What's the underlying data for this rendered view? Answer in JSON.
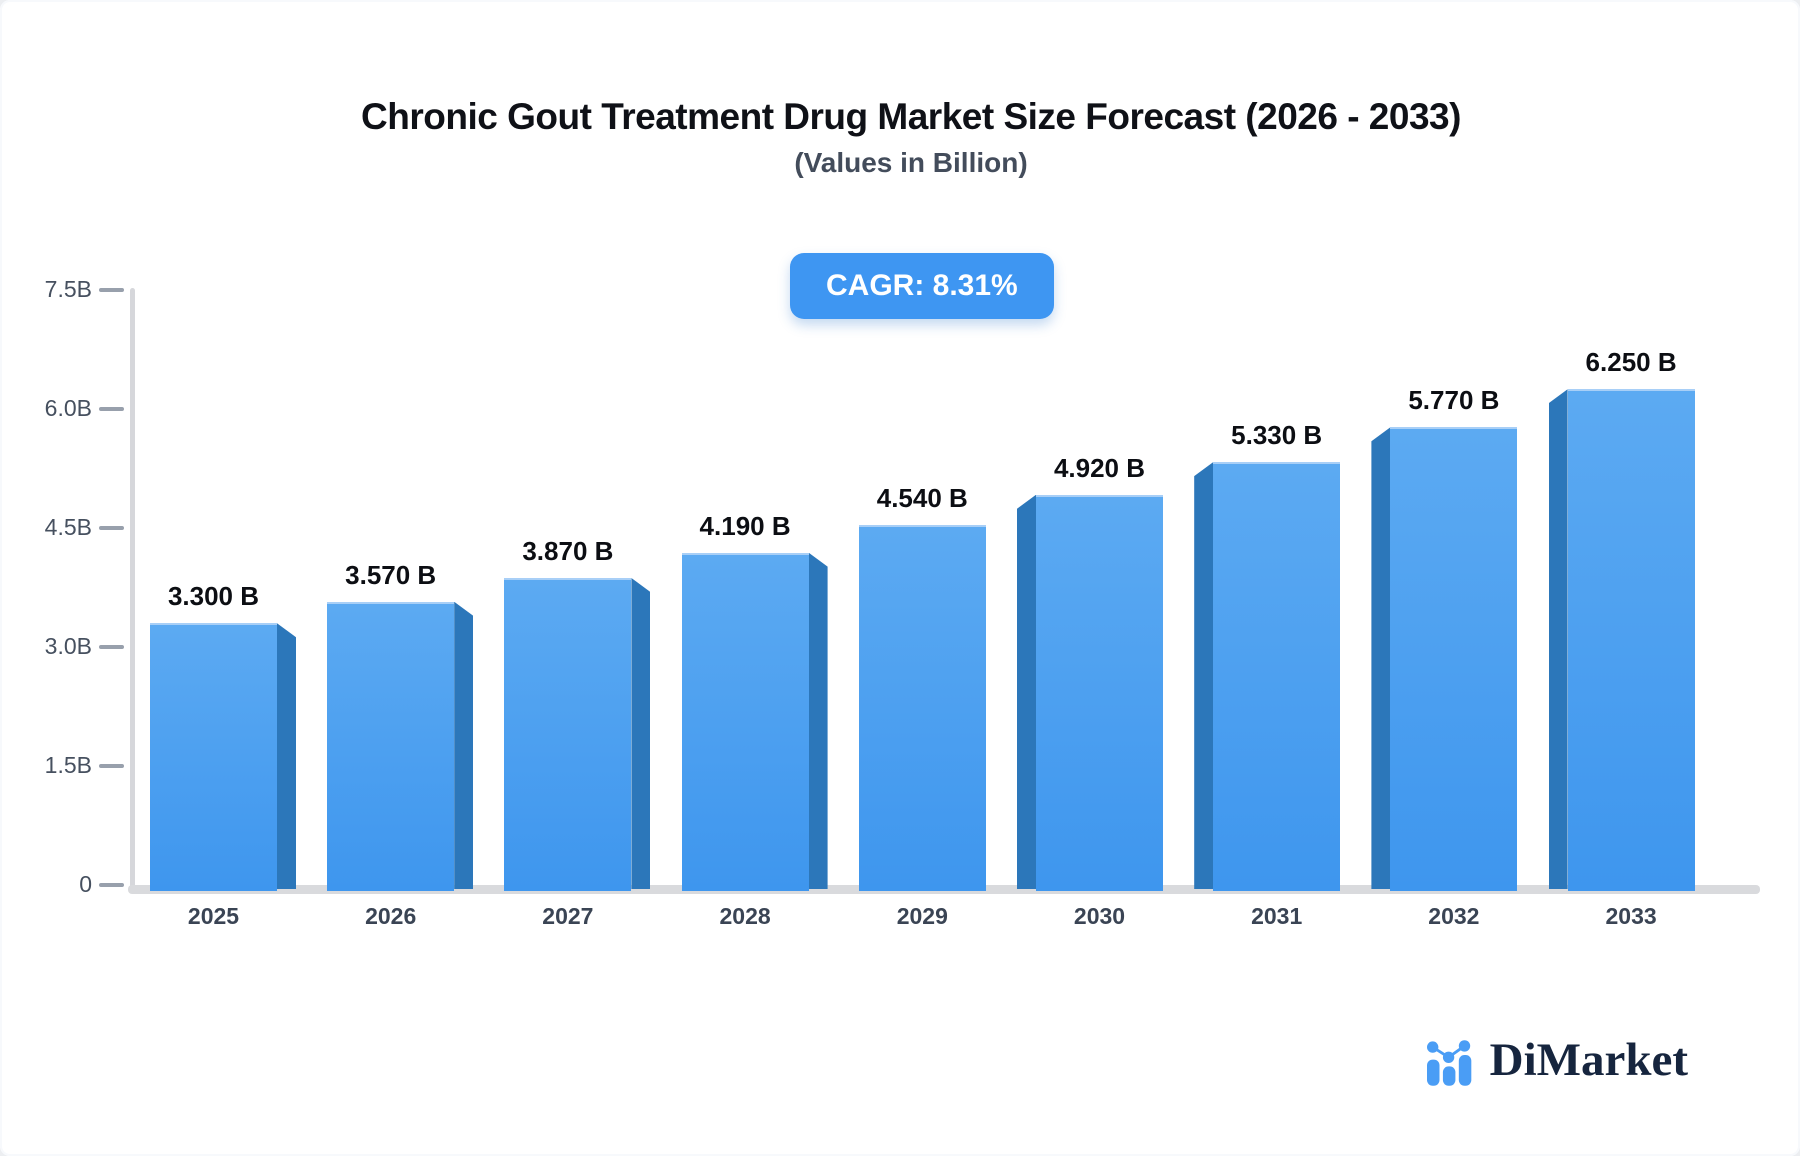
{
  "header": {
    "title": "Chronic Gout Treatment Drug Market Size Forecast (2026 - 2033)",
    "subtitle": "(Values in Billion)",
    "cagr_badge": "CAGR: 8.31%"
  },
  "chart_data": {
    "type": "bar",
    "title": "Chronic Gout Treatment Drug Market Size Forecast (2026 - 2033)",
    "subtitle": "(Values in Billion)",
    "unit": "Billion",
    "categories": [
      "2025",
      "2026",
      "2027",
      "2028",
      "2029",
      "2030",
      "2031",
      "2032",
      "2033"
    ],
    "values": [
      3.3,
      3.57,
      3.87,
      4.19,
      4.54,
      4.92,
      5.33,
      5.77,
      6.25
    ],
    "bar_labels": [
      "3.300 B",
      "3.570 B",
      "3.870 B",
      "4.190 B",
      "4.540 B",
      "4.920 B",
      "5.330 B",
      "5.770 B",
      "6.250 B"
    ],
    "cagr": "8.31%",
    "xlabel": "",
    "ylabel": "",
    "ylim": [
      0,
      7.5
    ],
    "yticks": [
      {
        "label": "0",
        "value": 0
      },
      {
        "label": "1.5B",
        "value": 1.5
      },
      {
        "label": "3.0B",
        "value": 3.0
      },
      {
        "label": "4.5B",
        "value": 4.5
      },
      {
        "label": "6.0B",
        "value": 6.0
      },
      {
        "label": "7.5B",
        "value": 7.5
      }
    ],
    "grid": false,
    "legend": false,
    "style": "pseudo-3d bars, center perspective"
  },
  "colors": {
    "accent_blue": "#3e96f2",
    "bar_face_top": "#5caaf2",
    "bar_face_bottom": "#3e96ee",
    "bar_side": "#2c77ba",
    "axis_line": "#d6d7db",
    "tick": "#98a0ac",
    "title_text": "#0f1117",
    "subtitle_text": "#434c5b",
    "logo_navy": "#16253e"
  },
  "logo": {
    "text": "DiMarket",
    "icon": "mini-bar-chart-with-trend-dots"
  }
}
